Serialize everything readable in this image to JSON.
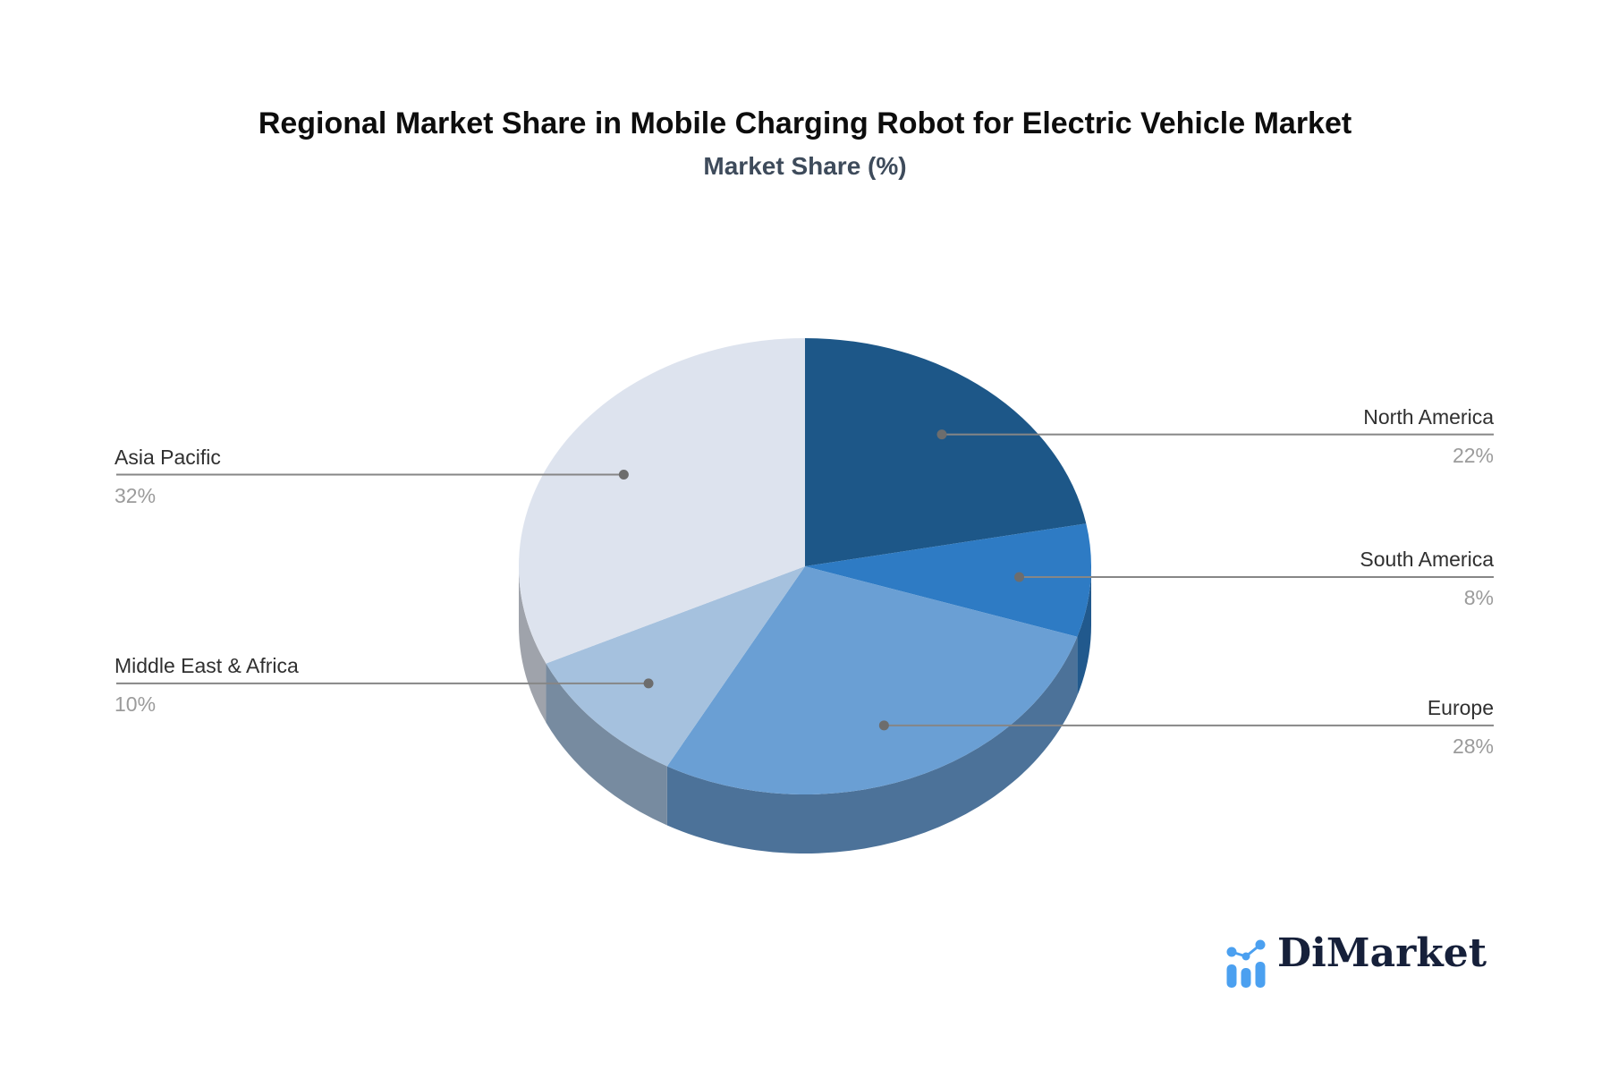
{
  "title": "Regional Market Share in Mobile Charging Robot for Electric Vehicle Market",
  "subtitle": "Market Share (%)",
  "chart_data": {
    "type": "pie",
    "style": "3d",
    "title": "Regional Market Share in Mobile Charging Robot for Electric Vehicle Market",
    "subtitle": "Market Share (%)",
    "unit": "%",
    "start_angle_deg": 0,
    "direction": "clockwise-from-top",
    "legend_position": "leader-line-labels",
    "series": [
      {
        "name": "North America",
        "value": 22,
        "color": "#1D5788",
        "label_side": "right"
      },
      {
        "name": "South America",
        "value": 8,
        "color": "#2E7BC4",
        "label_side": "right"
      },
      {
        "name": "Europe",
        "value": 28,
        "color": "#6A9FD4",
        "label_side": "right"
      },
      {
        "name": "Middle East & Africa",
        "value": 10,
        "color": "#A5C1DE",
        "label_side": "left"
      },
      {
        "name": "Asia Pacific",
        "value": 32,
        "color": "#DDE3EE",
        "label_side": "left"
      }
    ],
    "colors": {
      "leader_line": "#868686",
      "leader_dot": "#6d6d6d",
      "label_name": "#303030",
      "label_value": "#9b9b9b"
    }
  },
  "logo": {
    "text": "DiMarket",
    "text_color": "#16203a",
    "icon": "bar-chart-icon",
    "icon_color": "#4BA0F0"
  }
}
